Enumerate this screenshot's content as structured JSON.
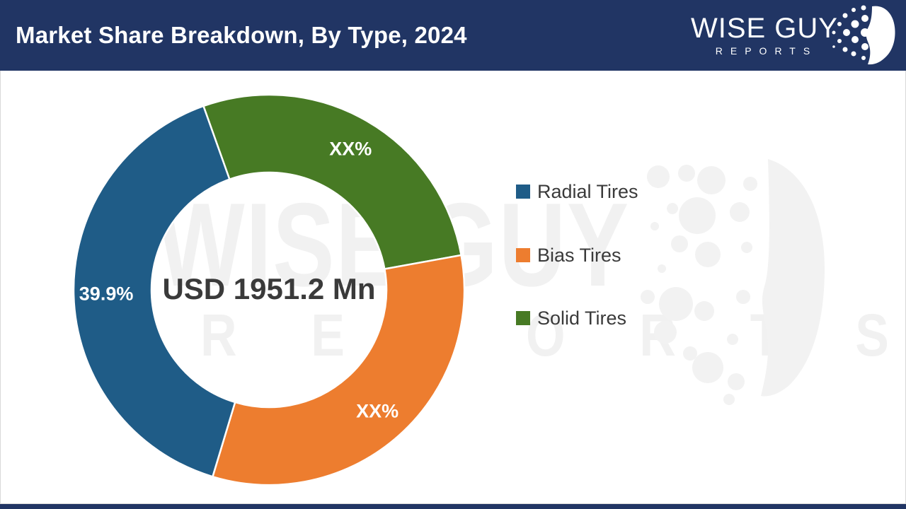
{
  "header": {
    "title": "Market Share Breakdown, By Type, 2024",
    "logo": {
      "wordmark": "WISE GUY",
      "subtext": "REPORTS"
    }
  },
  "watermark": {
    "wordmark": "WISE GUY",
    "subtext": "R E P O R T S"
  },
  "chart_data": {
    "type": "pie",
    "variant": "donut",
    "title": "Market Share Breakdown, By Type, 2024",
    "center_label": "USD 1951.2 Mn",
    "direction": "clockwise",
    "start_angle_deg": -19.6,
    "categories": [
      "Radial Tires",
      "Bias Tires",
      "Solid Tires"
    ],
    "values_pct": [
      39.9,
      32.5,
      27.6
    ],
    "displayed_labels": [
      "39.9%",
      "XX%",
      "XX%"
    ],
    "colors": [
      "#1f5c87",
      "#ed7d2f",
      "#477a24"
    ],
    "draw_order_clockwise_from_top": [
      "Solid Tires",
      "Bias Tires",
      "Radial Tires"
    ],
    "legend_position": "right",
    "legend": [
      {
        "label": "Radial Tires",
        "color": "#1f5c87"
      },
      {
        "label": "Bias Tires",
        "color": "#ed7d2f"
      },
      {
        "label": "Solid Tires",
        "color": "#477a24"
      }
    ]
  },
  "colors": {
    "header_navy": "#213564",
    "footer_navy": "#213564",
    "text_dark": "#3a3a3a",
    "watermark_gray": "#f1f1f1",
    "border_gray": "#d9d9d9",
    "slice_gap_white": "#ffffff"
  }
}
